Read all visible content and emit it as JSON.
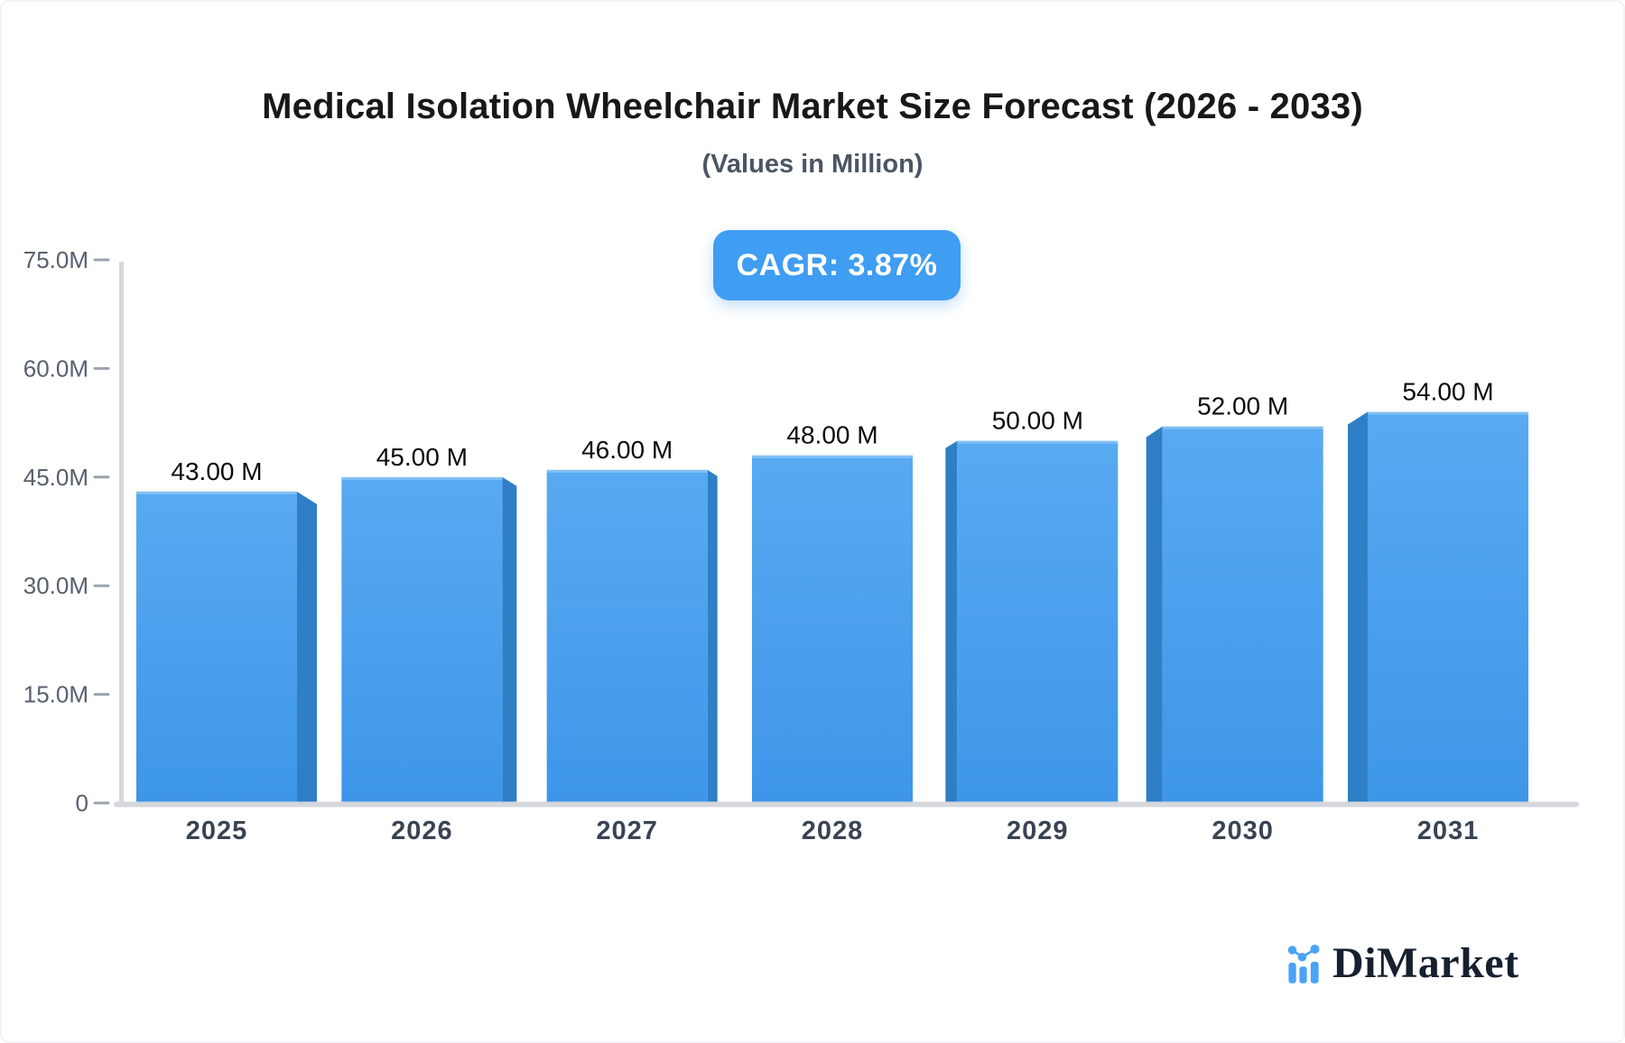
{
  "header": {
    "title": "Medical Isolation Wheelchair Market Size Forecast (2026 - 2033)",
    "subtitle": "(Values in Million)"
  },
  "cagr_badge": "CAGR: 3.87%",
  "brand": {
    "name": "DiMarket",
    "icon": "bar-line-chart-icon"
  },
  "colors": {
    "bar_top": "#58AAF1",
    "bar_bottom": "#3E96E9",
    "bar_side": "#2E7FC6",
    "bar_highlight": "rgba(255,255,255,0.25)",
    "badge_bg": "#3F9DF2",
    "axis_line": "#D5D7DC",
    "tick_dash": "#9CA3AF",
    "tick_text": "#57606F",
    "axis_text": "#3A4352",
    "value_label_text": "#0B0B0B",
    "brand_blue": "#4BA3F7",
    "brand_text": "#16202F"
  },
  "chart_data": {
    "type": "bar",
    "title": "Medical Isolation Wheelchair Market Size Forecast (2026 - 2033)",
    "subtitle": "(Values in Million)",
    "unit": "Million",
    "categories": [
      "2025",
      "2026",
      "2027",
      "2028",
      "2029",
      "2030",
      "2031"
    ],
    "values": [
      43,
      45,
      46,
      48,
      50,
      52,
      54
    ],
    "value_labels": [
      "43.00 M",
      "45.00 M",
      "46.00 M",
      "48.00 M",
      "50.00 M",
      "52.00 M",
      "54.00 M"
    ],
    "ylim": [
      0,
      75
    ],
    "ytick_values": [
      0,
      15,
      30,
      45,
      60,
      75
    ],
    "ytick_labels": [
      "0",
      "15.0M",
      "30.0M",
      "45.0M",
      "60.0M",
      "75.0M"
    ],
    "grid": false,
    "legend": false,
    "bar_style": "3d-extruded",
    "annotation": "CAGR: 3.87%"
  }
}
